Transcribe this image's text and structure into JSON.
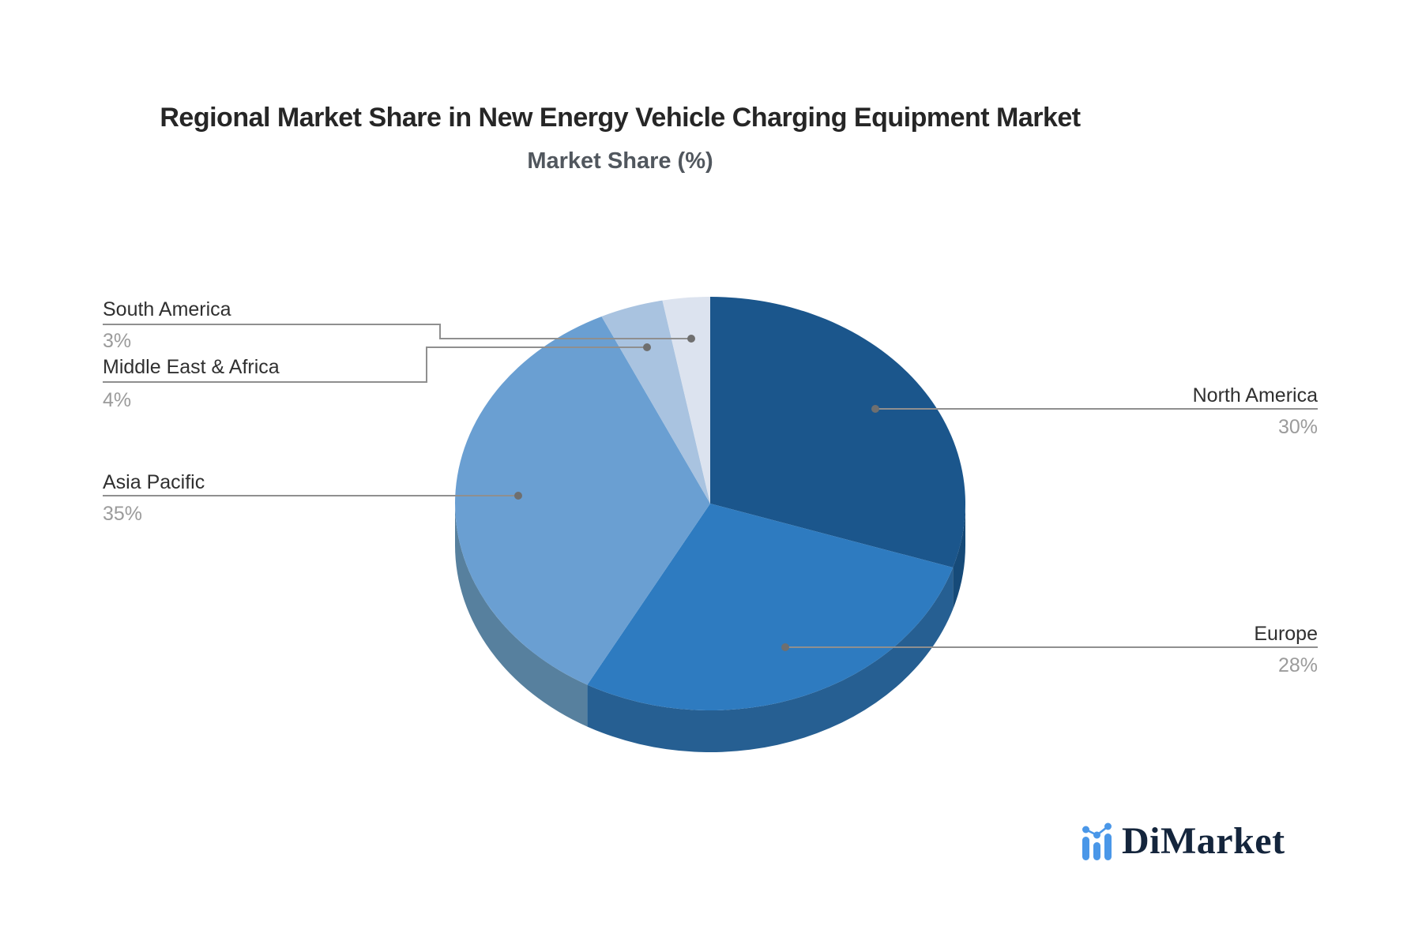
{
  "title": "Regional Market Share in New Energy Vehicle Charging Equipment Market",
  "subtitle": "Market Share (%)",
  "logo": {
    "text": "DiMarket",
    "icon": "bar-chart-trend-icon",
    "icon_color": "#4a97e8",
    "text_color": "#14253c"
  },
  "chart_data": {
    "type": "pie",
    "style": "3d-pie",
    "title": "Regional Market Share in New Energy Vehicle Charging Equipment Market",
    "subtitle": "Market Share (%)",
    "unit": "%",
    "start_angle_deg": 0,
    "direction": "clockwise",
    "legend_position": "none",
    "label_style": "callout-leader-lines",
    "slices": [
      {
        "label": "North America",
        "value": 30,
        "pct_label": "30%",
        "color": "#1b568c",
        "depth_color": "#164a78"
      },
      {
        "label": "Europe",
        "value": 28,
        "pct_label": "28%",
        "color": "#2e7bc0",
        "depth_color": "#265f92"
      },
      {
        "label": "Asia Pacific",
        "value": 35,
        "pct_label": "35%",
        "color": "#6a9fd2",
        "depth_color": "#57809e"
      },
      {
        "label": "Middle East & Africa",
        "value": 4,
        "pct_label": "4%",
        "color": "#a9c3e0",
        "depth_color": "#8ba7c4"
      },
      {
        "label": "South America",
        "value": 3,
        "pct_label": "3%",
        "color": "#dce3ef",
        "depth_color": "#b9c6d9"
      }
    ],
    "connector_color": "#8f8f8f",
    "connector_dot_color": "#6f6f6f"
  }
}
